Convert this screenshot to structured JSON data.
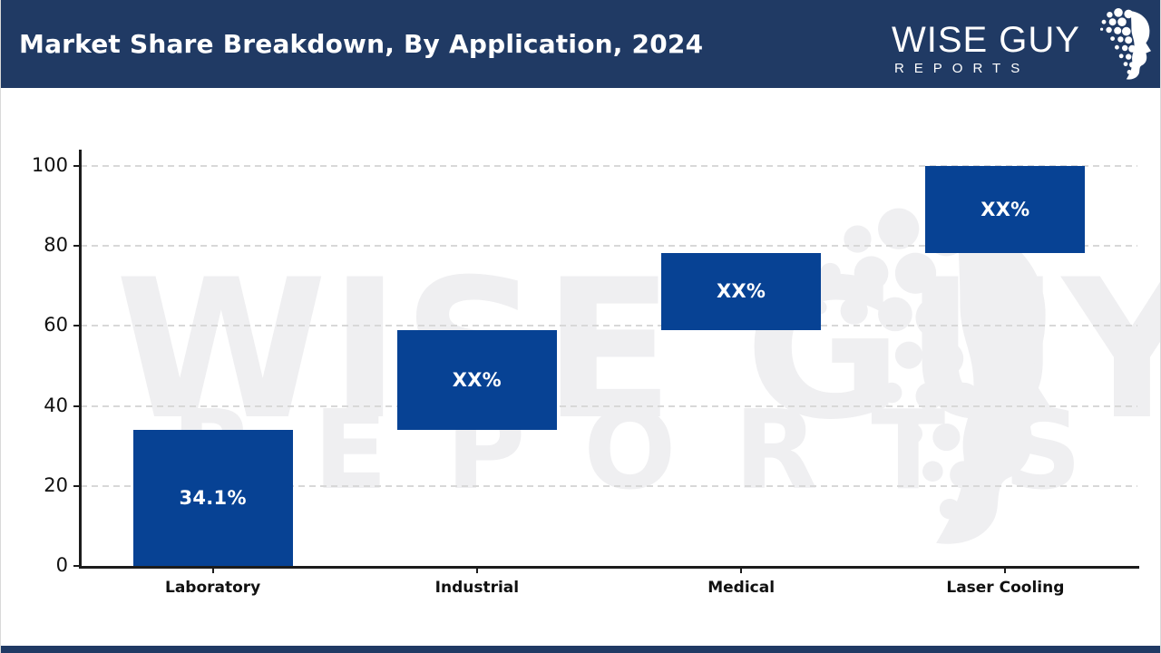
{
  "header": {
    "title": "Market Share Breakdown, By Application, 2024",
    "logo": {
      "line1": "WISE GUY",
      "line2": "REPORTS"
    }
  },
  "watermark": {
    "line1": "WISE GUY",
    "line2": "REPORTS"
  },
  "colors": {
    "header_bg": "#203a64",
    "footer_bg": "#203a64",
    "bar": "#074294",
    "bar_label": "#ffffff",
    "grid": "#d8d8d8",
    "axis": "#1c1c1c",
    "tick_label": "#111111",
    "watermark": "#efeff1",
    "logo_text": "#ffffff"
  },
  "chart_data": {
    "type": "bar",
    "subtype": "waterfall",
    "title": "Market Share Breakdown, By Application, 2024",
    "categories": [
      "Laboratory",
      "Industrial",
      "Medical",
      "Laser Cooling"
    ],
    "segments": [
      {
        "category": "Laboratory",
        "start": 0,
        "end": 34.1,
        "label": "34.1%"
      },
      {
        "category": "Industrial",
        "start": 34.1,
        "end": 59.0,
        "label": "XX%"
      },
      {
        "category": "Medical",
        "start": 59.0,
        "end": 78.3,
        "label": "XX%"
      },
      {
        "category": "Laser Cooling",
        "start": 78.3,
        "end": 100,
        "label": "XX%"
      }
    ],
    "ylim": [
      0,
      100
    ],
    "yticks": [
      0,
      20,
      40,
      60,
      80,
      100
    ],
    "xlabel": "",
    "ylabel": "",
    "grid": "horizontal-dashed",
    "legend": "none"
  }
}
